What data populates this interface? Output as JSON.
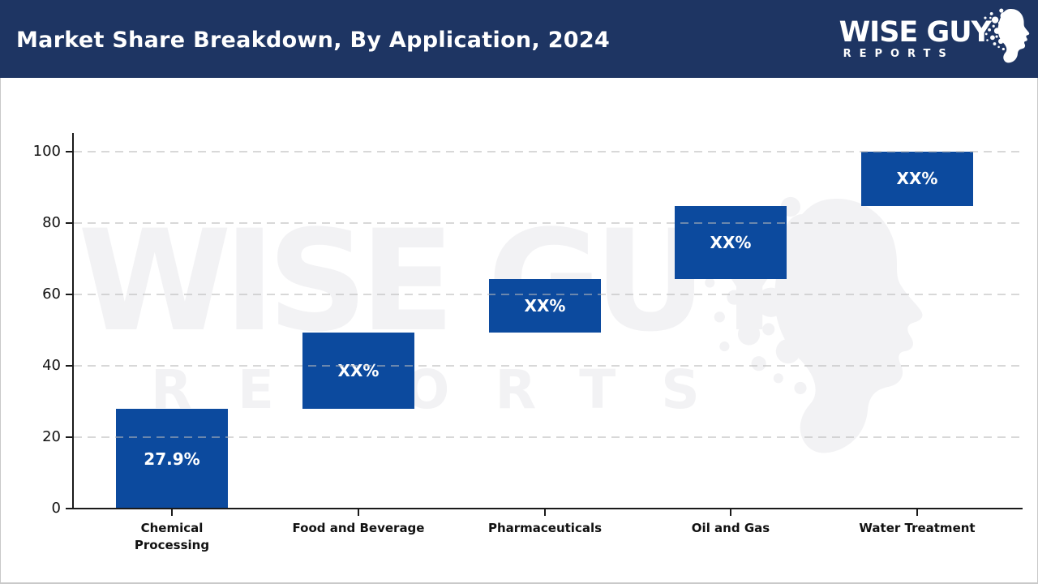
{
  "header": {
    "title": "Market Share Breakdown, By Application, 2024",
    "logo": {
      "brand_top": "WISE GUY",
      "brand_bottom": "REPORTS"
    }
  },
  "watermark": {
    "text_top": "WISE GUY",
    "text_bottom": "REPORTS"
  },
  "colors": {
    "header_bg": "#1e3563",
    "title_text": "#ffffff",
    "bar": "#0c4a9e",
    "axis": "#1a1a1a",
    "grid": "#c8c8c8",
    "watermark": "#f2f2f4",
    "value_label": "#ffffff"
  },
  "chart_data": {
    "type": "bar",
    "subtype": "waterfall-floating-bars",
    "title": "Market Share Breakdown, By Application, 2024",
    "xlabel": "",
    "ylabel": "",
    "ylim": [
      0,
      100
    ],
    "yticks": [
      0,
      20,
      40,
      60,
      80,
      100
    ],
    "grid": "horizontal-dashed",
    "legend": "none",
    "categories": [
      "Chemical\nProcessing",
      "Food and Beverage",
      "Pharmaceuticals",
      "Oil and Gas",
      "Water Treatment"
    ],
    "segments": [
      {
        "category": "Chemical Processing",
        "start": 0,
        "end": 27.9,
        "label": "27.9%"
      },
      {
        "category": "Food and Beverage",
        "start": 27.9,
        "end": 49.3,
        "label": "XX%"
      },
      {
        "category": "Pharmaceuticals",
        "start": 49.3,
        "end": 64.3,
        "label": "XX%"
      },
      {
        "category": "Oil and Gas",
        "start": 64.3,
        "end": 84.8,
        "label": "XX%"
      },
      {
        "category": "Water Treatment",
        "start": 84.8,
        "end": 100,
        "label": "XX%"
      }
    ]
  }
}
